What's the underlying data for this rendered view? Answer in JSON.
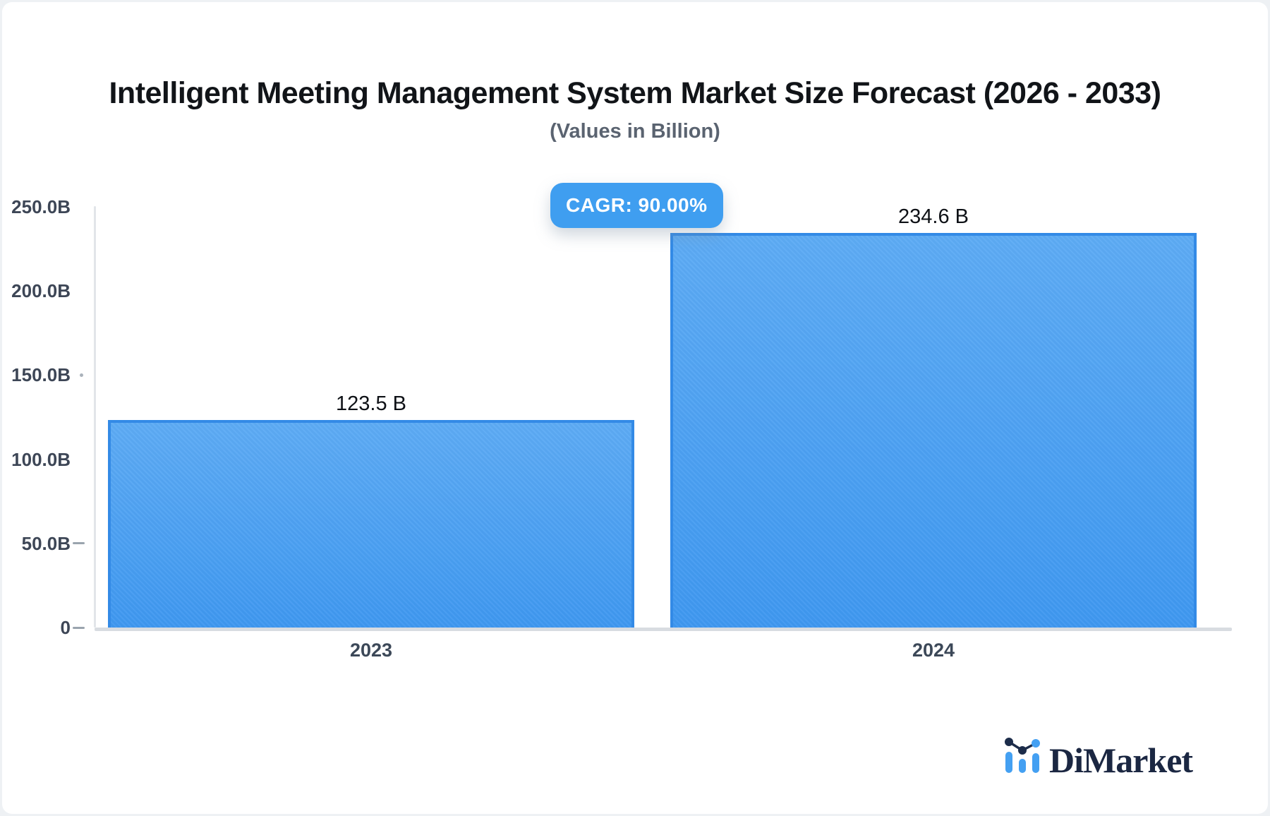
{
  "page": {
    "background": "#eef1f4",
    "card_background": "#ffffff"
  },
  "header": {
    "title": "Intelligent Meeting Management System Market Size Forecast (2026 - 2033)",
    "subtitle": "(Values in Billion)"
  },
  "badge": {
    "label": "CAGR: 90.00%",
    "background": "#3f9ef0",
    "text_color": "#ffffff"
  },
  "chart_data": {
    "type": "bar",
    "title": "Intelligent Meeting Management System Market Size Forecast (2026 - 2033)",
    "subtitle": "(Values in Billion)",
    "categories": [
      "2023",
      "2024"
    ],
    "values": [
      123.5,
      234.6
    ],
    "value_labels": [
      "123.5 B",
      "234.6 B"
    ],
    "ylim": [
      0,
      250
    ],
    "ytick_step": 50,
    "ytick_labels": [
      "0",
      "50.0B",
      "100.0B",
      "150.0B",
      "200.0B",
      "250.0B"
    ],
    "ytick_marks": [
      "dash",
      "dash",
      "none",
      "dot",
      "none",
      "none"
    ],
    "grid": false,
    "legend": false,
    "colors": {
      "bar_gradient_top": "#5cabf4",
      "bar_gradient_bottom": "#3e97f0",
      "bar_border": "#338ae6",
      "axis_line": "#e2e5e9",
      "baseline": "#d8dce1",
      "tick_mark": "#9aa4ae",
      "tick_label": "#3d4656",
      "value_label": "#0e1116"
    }
  },
  "logo": {
    "text": "DiMarket",
    "icon": "bar-chart-logo-icon",
    "text_color": "#1b2742",
    "icon_blue": "#44a0f2",
    "icon_navy": "#1c2c4a"
  }
}
